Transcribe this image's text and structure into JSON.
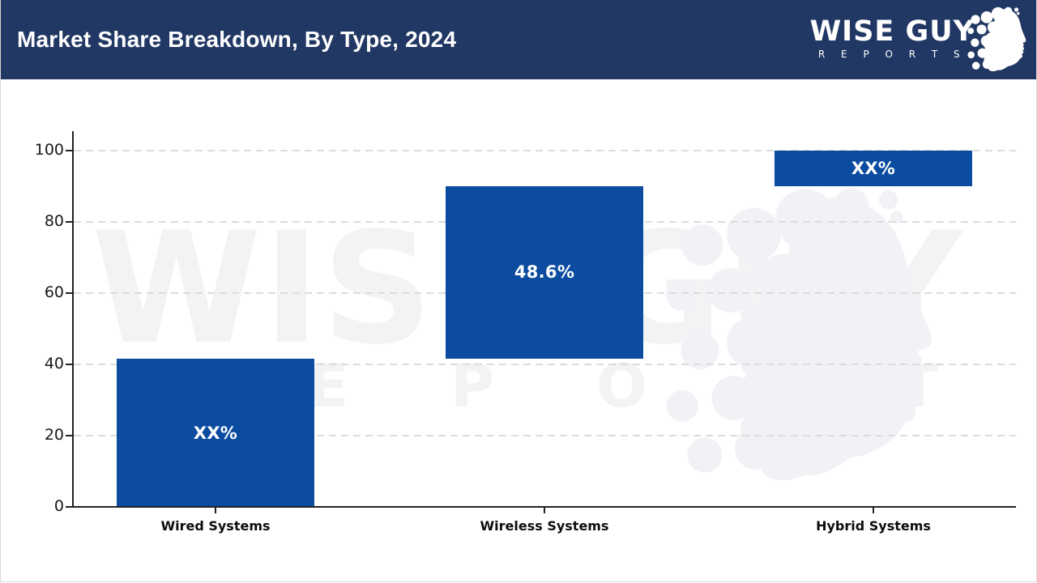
{
  "header": {
    "title": "Market Share Breakdown, By Type, 2024",
    "logo": {
      "line1": "WISE GUY",
      "line2": "R E P O R T S"
    }
  },
  "watermark": {
    "line1": "WISE GUY",
    "line2": "R E P O R T S"
  },
  "colors": {
    "header_bg": "#223864",
    "bar": "#0b4ba0",
    "grid": "#dcdcdc",
    "axis": "#222222",
    "bar_label": "#ffffff",
    "watermark": "#f2f3f5"
  },
  "chart_data": {
    "type": "bar",
    "subtype": "waterfall",
    "title": "Market Share Breakdown, By Type, 2024",
    "categories": [
      "Wired Systems",
      "Wireless Systems",
      "Hybrid Systems"
    ],
    "segments": [
      {
        "category": "Wired Systems",
        "start": 0,
        "end": 41.5,
        "label": "XX%"
      },
      {
        "category": "Wireless Systems",
        "start": 41.5,
        "end": 90.1,
        "label": "48.6%"
      },
      {
        "category": "Hybrid Systems",
        "start": 90.1,
        "end": 100,
        "label": "XX%"
      }
    ],
    "ylim": [
      0,
      100
    ],
    "yticks": [
      0,
      20,
      40,
      60,
      80,
      100
    ],
    "grid": "horizontal-dashed",
    "legend": "none"
  }
}
